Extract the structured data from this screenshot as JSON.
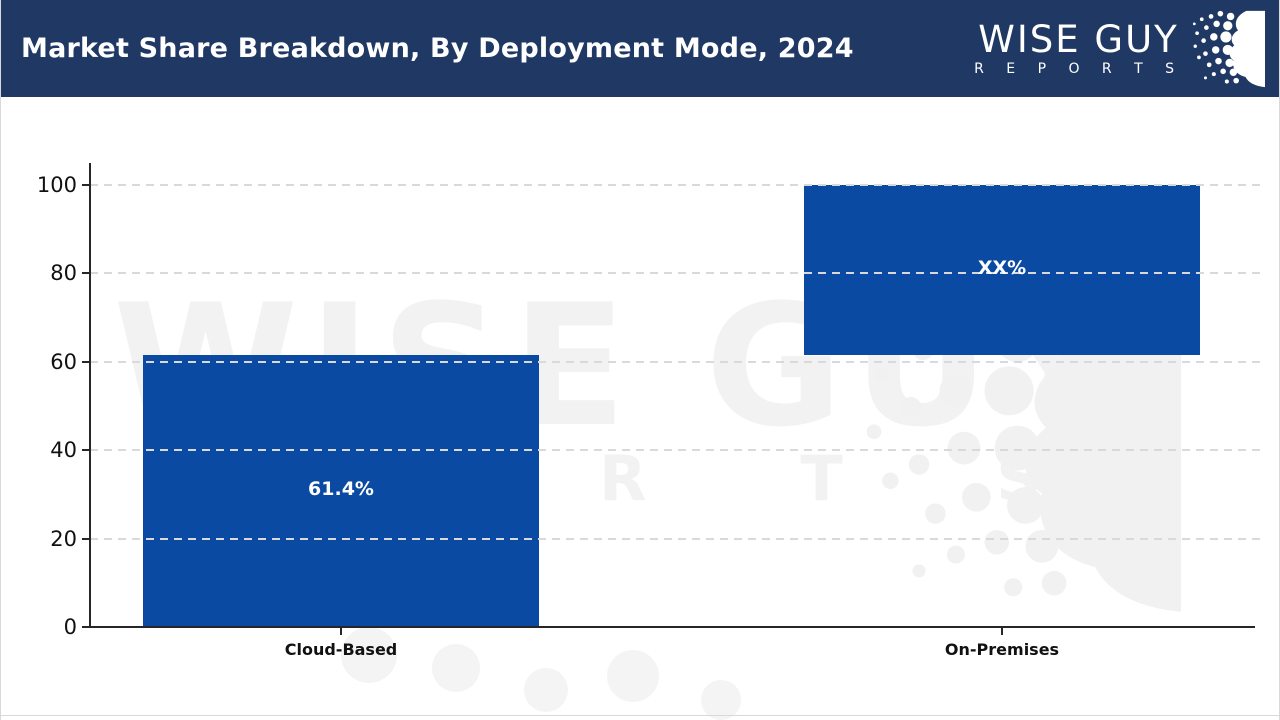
{
  "header": {
    "title": "Market Share Breakdown, By Deployment Mode, 2024",
    "logo": {
      "line1": "WISE GUY",
      "line2": "R E P O R T S"
    }
  },
  "watermark": {
    "line1": "WISE GUY",
    "line2": "R T S"
  },
  "chart_data": {
    "type": "bar",
    "subtype": "floating-percentage-segments",
    "title": "Market Share Breakdown, By Deployment Mode, 2024",
    "categories": [
      "Cloud-Based",
      "On-Premises"
    ],
    "series": [
      {
        "category": "Cloud-Based",
        "start": 0,
        "end": 61.4,
        "label": "61.4%"
      },
      {
        "category": "On-Premises",
        "start": 61.4,
        "end": 100,
        "label": "XX%"
      }
    ],
    "yticks": [
      0,
      20,
      40,
      60,
      80,
      100
    ],
    "ylim": [
      0,
      105
    ],
    "grid": "horizontal-dashed",
    "legend": "none",
    "xlabel": "",
    "ylabel": ""
  },
  "colors": {
    "header_bg": "#1f3864",
    "bar": "#0b4aa2",
    "bar_label": "#ffffff",
    "gridline": "#d9d9d9",
    "axis": "#262626",
    "tick_text": "#111111",
    "watermark": "#f2f2f2",
    "border": "#d9d9d9"
  }
}
